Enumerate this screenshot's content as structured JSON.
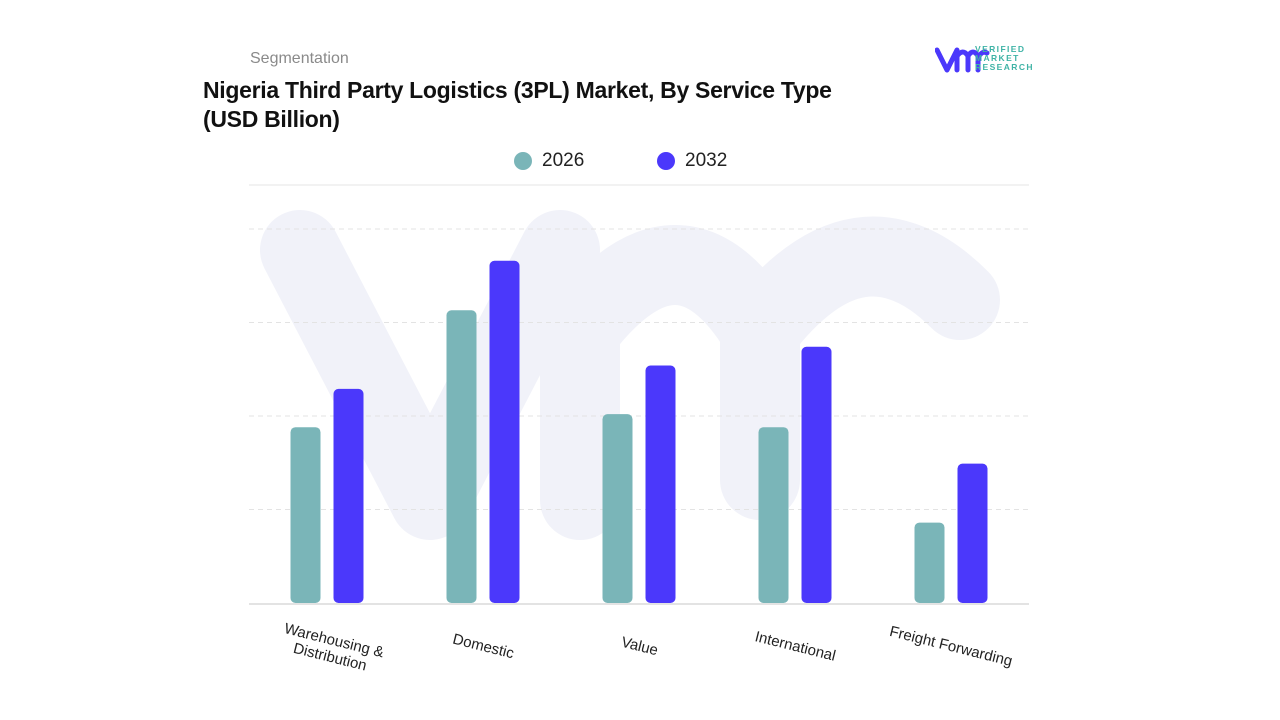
{
  "header": {
    "section": "Segmentation",
    "title_line1": "Nigeria Third Party Logistics (3PL) Market, By Service Type",
    "title_line2": "(USD Billion)"
  },
  "logo": {
    "text_line1": "VERIFIED",
    "text_line2": "MARKET",
    "text_line3": "RESEARCH",
    "mark": "vmr"
  },
  "chart_data": {
    "type": "bar",
    "title": "Nigeria Third Party Logistics (3PL) Market, By Service Type (USD Billion)",
    "categories": [
      "Warehousing & Distribution",
      "Domestic",
      "Value",
      "International",
      "Freight Forwarding"
    ],
    "series": [
      {
        "name": "2026",
        "color": "#7ab5b8",
        "values": [
          1.88,
          3.13,
          2.02,
          1.88,
          0.86
        ]
      },
      {
        "name": "2032",
        "color": "#4b38fb",
        "values": [
          2.29,
          3.66,
          2.54,
          2.74,
          1.49
        ]
      }
    ],
    "xlabel": "",
    "ylabel": "",
    "ylim": [
      0,
      4.47
    ],
    "y_tick_labels_shown": false,
    "grid": true,
    "legend_position": "top-center"
  }
}
